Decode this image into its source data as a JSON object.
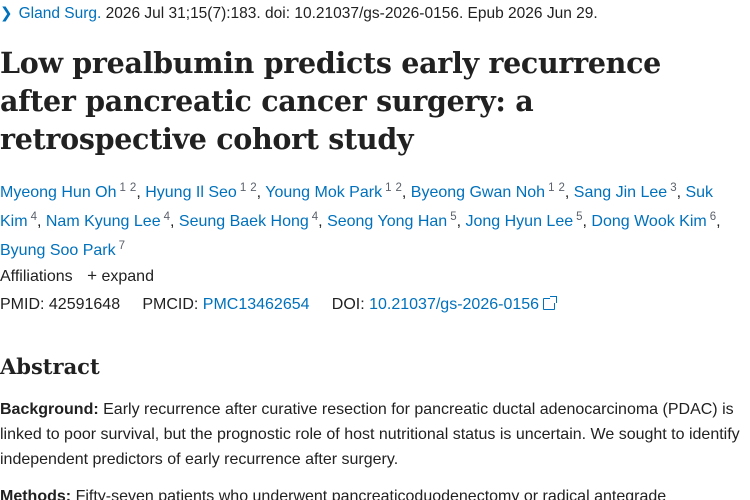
{
  "citation": {
    "journal": "Gland Surg.",
    "details": "2026 Jul 31;15(7):183. doi: 10.21037/gs-2026-0156. Epub 2026 Jun 29."
  },
  "title": "Low prealbumin predicts early recurrence after pancreatic cancer surgery: a retrospective cohort study",
  "authors": [
    {
      "name": "Myeong Hun Oh",
      "aff": [
        "1",
        "2"
      ]
    },
    {
      "name": "Hyung Il Seo",
      "aff": [
        "1",
        "2"
      ]
    },
    {
      "name": "Young Mok Park",
      "aff": [
        "1",
        "2"
      ]
    },
    {
      "name": "Byeong Gwan Noh",
      "aff": [
        "1",
        "2"
      ]
    },
    {
      "name": "Sang Jin Lee",
      "aff": [
        "3"
      ]
    },
    {
      "name": "Suk Kim",
      "aff": [
        "4"
      ]
    },
    {
      "name": "Nam Kyung Lee",
      "aff": [
        "4"
      ]
    },
    {
      "name": "Seung Baek Hong",
      "aff": [
        "4"
      ]
    },
    {
      "name": "Seong Yong Han",
      "aff": [
        "5"
      ]
    },
    {
      "name": "Jong Hyun Lee",
      "aff": [
        "5"
      ]
    },
    {
      "name": "Dong Wook Kim",
      "aff": [
        "6"
      ]
    },
    {
      "name": "Byung Soo Park",
      "aff": [
        "7"
      ]
    }
  ],
  "affiliations": {
    "label": "Affiliations",
    "toggle_icon": "+",
    "toggle_label": "expand"
  },
  "identifiers": {
    "pmid_label": "PMID:",
    "pmid": "42591648",
    "pmcid_label": "PMCID:",
    "pmcid": "PMC13462654",
    "doi_label": "DOI:",
    "doi": "10.21037/gs-2026-0156"
  },
  "abstract": {
    "heading": "Abstract",
    "background_label": "Background:",
    "background_text": "Early recurrence after curative resection for pancreatic ductal adenocarcinoma (PDAC) is linked to poor survival, but the prognostic role of host nutritional status is uncertain. We sought to identify independent predictors of early recurrence after surgery.",
    "methods_label": "Methods:",
    "methods_text": "Fifty-seven patients who underwent pancreaticoduodenectomy or radical antegrade"
  },
  "colors": {
    "link": "#0071bc",
    "text": "#212121",
    "muted": "#5b616b"
  }
}
